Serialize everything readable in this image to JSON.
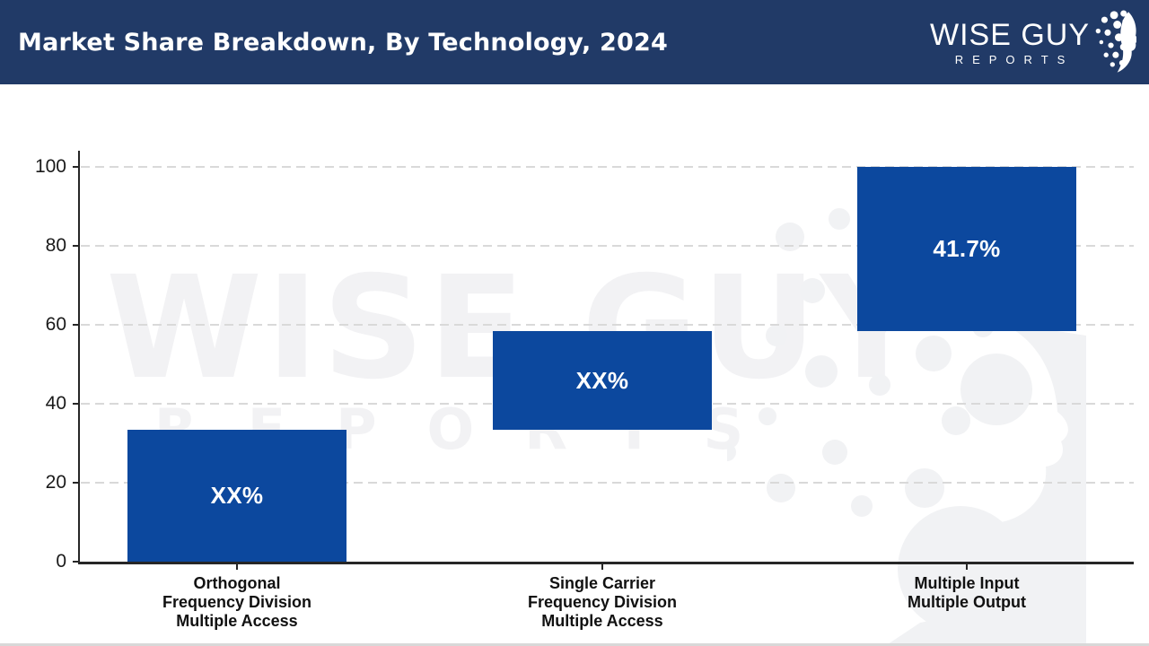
{
  "header": {
    "title": "Market Share Breakdown, By Technology, 2024",
    "bg_color": "#213a67",
    "logo": {
      "wordmark": "WISE GUY",
      "subtext": "REPORTS"
    }
  },
  "watermark": {
    "wordmark": "WISE GUY",
    "subtext": "REPORTS"
  },
  "colors": {
    "bar": "#0c489e",
    "header_bg": "#213a67",
    "axis": "#262626",
    "gridline": "#d9d9d9",
    "watermark": "#f2f2f4",
    "bar_label_text": "#ffffff"
  },
  "chart_data": {
    "type": "bar",
    "variant": "floating-stacked-waterfall",
    "title": "Market Share Breakdown, By Technology, 2024",
    "categories": [
      "Orthogonal Frequency Division Multiple Access",
      "Single Carrier Frequency Division Multiple Access",
      "Multiple Input Multiple Output"
    ],
    "category_lines": [
      [
        "Orthogonal",
        "Frequency Division",
        "Multiple Access"
      ],
      [
        "Single Carrier",
        "Frequency Division",
        "Multiple Access"
      ],
      [
        "Multiple Input",
        "Multiple Output"
      ]
    ],
    "segments": [
      {
        "label": "XX%",
        "start": 0,
        "end": 33.3,
        "value": 33.3
      },
      {
        "label": "XX%",
        "start": 33.3,
        "end": 58.3,
        "value": 25.0
      },
      {
        "label": "41.7%",
        "start": 58.3,
        "end": 100,
        "value": 41.7
      }
    ],
    "xlabel": "",
    "ylabel": "",
    "yticks": [
      0,
      20,
      40,
      60,
      80,
      100
    ],
    "ylim": [
      0,
      105
    ],
    "grid": "horizontal-dashed",
    "legend": "none"
  }
}
